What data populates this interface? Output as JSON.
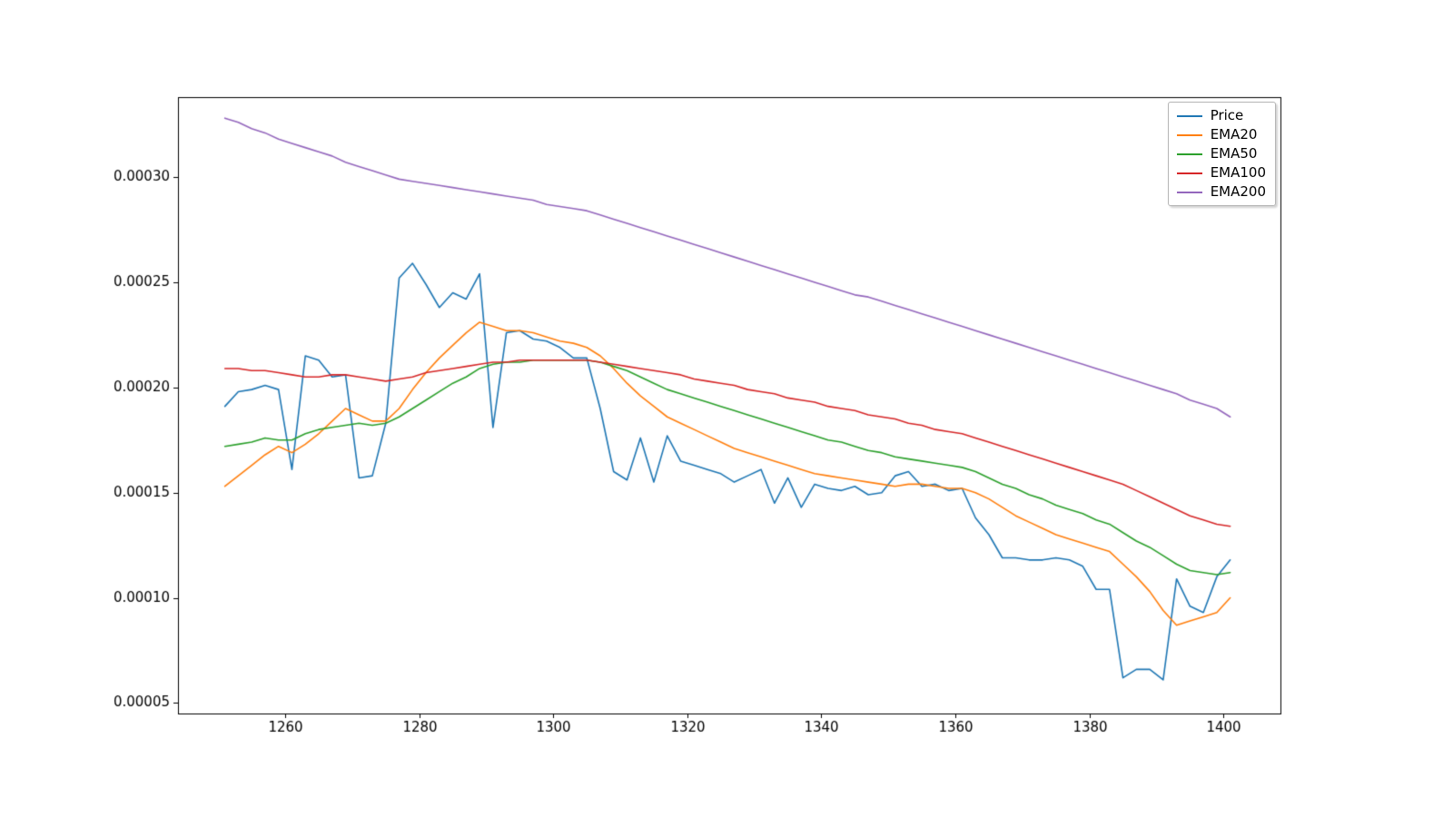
{
  "chart_data": {
    "type": "line",
    "title": "",
    "xlabel": "",
    "ylabel": "",
    "grid": false,
    "legend_position": "upper right",
    "xlim": [
      1244,
      1408.5
    ],
    "ylim": [
      4.5e-05,
      0.000338
    ],
    "xticks": [
      1260,
      1280,
      1300,
      1320,
      1340,
      1360,
      1380,
      1400
    ],
    "xtick_labels": [
      "1260",
      "1280",
      "1300",
      "1320",
      "1340",
      "1360",
      "1380",
      "1400"
    ],
    "yticks": [
      5e-05,
      0.0001,
      0.00015,
      0.0002,
      0.00025,
      0.0003
    ],
    "ytick_labels": [
      "0.00005",
      "0.00010",
      "0.00015",
      "0.00020",
      "0.00025",
      "0.00030"
    ],
    "x": [
      1251,
      1253,
      1255,
      1257,
      1259,
      1261,
      1263,
      1265,
      1267,
      1269,
      1271,
      1273,
      1275,
      1277,
      1279,
      1281,
      1283,
      1285,
      1287,
      1289,
      1291,
      1293,
      1295,
      1297,
      1299,
      1301,
      1303,
      1305,
      1307,
      1309,
      1311,
      1313,
      1315,
      1317,
      1319,
      1321,
      1323,
      1325,
      1327,
      1329,
      1331,
      1333,
      1335,
      1337,
      1339,
      1341,
      1343,
      1345,
      1347,
      1349,
      1351,
      1353,
      1355,
      1357,
      1359,
      1361,
      1363,
      1365,
      1367,
      1369,
      1371,
      1373,
      1375,
      1377,
      1379,
      1381,
      1383,
      1385,
      1387,
      1389,
      1391,
      1393,
      1395,
      1397,
      1399,
      1401
    ],
    "series": [
      {
        "name": "Price",
        "color": "#1f77b4",
        "values": [
          0.000191,
          0.000198,
          0.000199,
          0.000201,
          0.000199,
          0.000161,
          0.000215,
          0.000213,
          0.000205,
          0.000206,
          0.000157,
          0.000158,
          0.000183,
          0.000252,
          0.000259,
          0.000249,
          0.000238,
          0.000245,
          0.000242,
          0.000254,
          0.000181,
          0.000226,
          0.000227,
          0.000223,
          0.000222,
          0.000219,
          0.000214,
          0.000214,
          0.00019,
          0.00016,
          0.000156,
          0.000176,
          0.000155,
          0.000177,
          0.000165,
          0.000163,
          0.000161,
          0.000159,
          0.000155,
          0.000158,
          0.000161,
          0.000145,
          0.000157,
          0.000143,
          0.000154,
          0.000152,
          0.000151,
          0.000153,
          0.000149,
          0.00015,
          0.000158,
          0.00016,
          0.000153,
          0.000154,
          0.000151,
          0.000152,
          0.000138,
          0.00013,
          0.000119,
          0.000119,
          0.000118,
          0.000118,
          0.000119,
          0.000118,
          0.000115,
          0.000104,
          0.000104,
          6.2e-05,
          6.6e-05,
          6.6e-05,
          6.1e-05,
          0.000109,
          9.6e-05,
          9.3e-05,
          0.00011,
          0.000118
        ]
      },
      {
        "name": "EMA20",
        "color": "#ff7f0e",
        "values": [
          0.000153,
          0.000158,
          0.000163,
          0.000168,
          0.000172,
          0.000169,
          0.000173,
          0.000178,
          0.000184,
          0.00019,
          0.000187,
          0.000184,
          0.000184,
          0.00019,
          0.000199,
          0.000207,
          0.000214,
          0.00022,
          0.000226,
          0.000231,
          0.000229,
          0.000227,
          0.000227,
          0.000226,
          0.000224,
          0.000222,
          0.000221,
          0.000219,
          0.000215,
          0.000209,
          0.000202,
          0.000196,
          0.000191,
          0.000186,
          0.000183,
          0.00018,
          0.000177,
          0.000174,
          0.000171,
          0.000169,
          0.000167,
          0.000165,
          0.000163,
          0.000161,
          0.000159,
          0.000158,
          0.000157,
          0.000156,
          0.000155,
          0.000154,
          0.000153,
          0.000154,
          0.000154,
          0.000153,
          0.000152,
          0.000152,
          0.00015,
          0.000147,
          0.000143,
          0.000139,
          0.000136,
          0.000133,
          0.00013,
          0.000128,
          0.000126,
          0.000124,
          0.000122,
          0.000116,
          0.00011,
          0.000103,
          9.4e-05,
          8.7e-05,
          8.9e-05,
          9.1e-05,
          9.3e-05,
          0.0001
        ]
      },
      {
        "name": "EMA50",
        "color": "#2ca02c",
        "values": [
          0.000172,
          0.000173,
          0.000174,
          0.000176,
          0.000175,
          0.000175,
          0.000178,
          0.00018,
          0.000181,
          0.000182,
          0.000183,
          0.000182,
          0.000183,
          0.000186,
          0.00019,
          0.000194,
          0.000198,
          0.000202,
          0.000205,
          0.000209,
          0.000211,
          0.000212,
          0.000212,
          0.000213,
          0.000213,
          0.000213,
          0.000213,
          0.000213,
          0.000212,
          0.00021,
          0.000208,
          0.000205,
          0.000202,
          0.000199,
          0.000197,
          0.000195,
          0.000193,
          0.000191,
          0.000189,
          0.000187,
          0.000185,
          0.000183,
          0.000181,
          0.000179,
          0.000177,
          0.000175,
          0.000174,
          0.000172,
          0.00017,
          0.000169,
          0.000167,
          0.000166,
          0.000165,
          0.000164,
          0.000163,
          0.000162,
          0.00016,
          0.000157,
          0.000154,
          0.000152,
          0.000149,
          0.000147,
          0.000144,
          0.000142,
          0.00014,
          0.000137,
          0.000135,
          0.000131,
          0.000127,
          0.000124,
          0.00012,
          0.000116,
          0.000113,
          0.000112,
          0.000111,
          0.000112
        ]
      },
      {
        "name": "EMA100",
        "color": "#d62728",
        "values": [
          0.000209,
          0.000209,
          0.000208,
          0.000208,
          0.000207,
          0.000206,
          0.000205,
          0.000205,
          0.000206,
          0.000206,
          0.000205,
          0.000204,
          0.000203,
          0.000204,
          0.000205,
          0.000207,
          0.000208,
          0.000209,
          0.00021,
          0.000211,
          0.000212,
          0.000212,
          0.000213,
          0.000213,
          0.000213,
          0.000213,
          0.000213,
          0.000213,
          0.000212,
          0.000211,
          0.00021,
          0.000209,
          0.000208,
          0.000207,
          0.000206,
          0.000204,
          0.000203,
          0.000202,
          0.000201,
          0.000199,
          0.000198,
          0.000197,
          0.000195,
          0.000194,
          0.000193,
          0.000191,
          0.00019,
          0.000189,
          0.000187,
          0.000186,
          0.000185,
          0.000183,
          0.000182,
          0.00018,
          0.000179,
          0.000178,
          0.000176,
          0.000174,
          0.000172,
          0.00017,
          0.000168,
          0.000166,
          0.000164,
          0.000162,
          0.00016,
          0.000158,
          0.000156,
          0.000154,
          0.000151,
          0.000148,
          0.000145,
          0.000142,
          0.000139,
          0.000137,
          0.000135,
          0.000134
        ]
      },
      {
        "name": "EMA200",
        "color": "#9467bd",
        "values": [
          0.000328,
          0.000326,
          0.000323,
          0.000321,
          0.000318,
          0.000316,
          0.000314,
          0.000312,
          0.00031,
          0.000307,
          0.000305,
          0.000303,
          0.000301,
          0.000299,
          0.000298,
          0.000297,
          0.000296,
          0.000295,
          0.000294,
          0.000293,
          0.000292,
          0.000291,
          0.00029,
          0.000289,
          0.000287,
          0.000286,
          0.000285,
          0.000284,
          0.000282,
          0.00028,
          0.000278,
          0.000276,
          0.000274,
          0.000272,
          0.00027,
          0.000268,
          0.000266,
          0.000264,
          0.000262,
          0.00026,
          0.000258,
          0.000256,
          0.000254,
          0.000252,
          0.00025,
          0.000248,
          0.000246,
          0.000244,
          0.000243,
          0.000241,
          0.000239,
          0.000237,
          0.000235,
          0.000233,
          0.000231,
          0.000229,
          0.000227,
          0.000225,
          0.000223,
          0.000221,
          0.000219,
          0.000217,
          0.000215,
          0.000213,
          0.000211,
          0.000209,
          0.000207,
          0.000205,
          0.000203,
          0.000201,
          0.000199,
          0.000197,
          0.000194,
          0.000192,
          0.00019,
          0.000186
        ]
      }
    ]
  }
}
